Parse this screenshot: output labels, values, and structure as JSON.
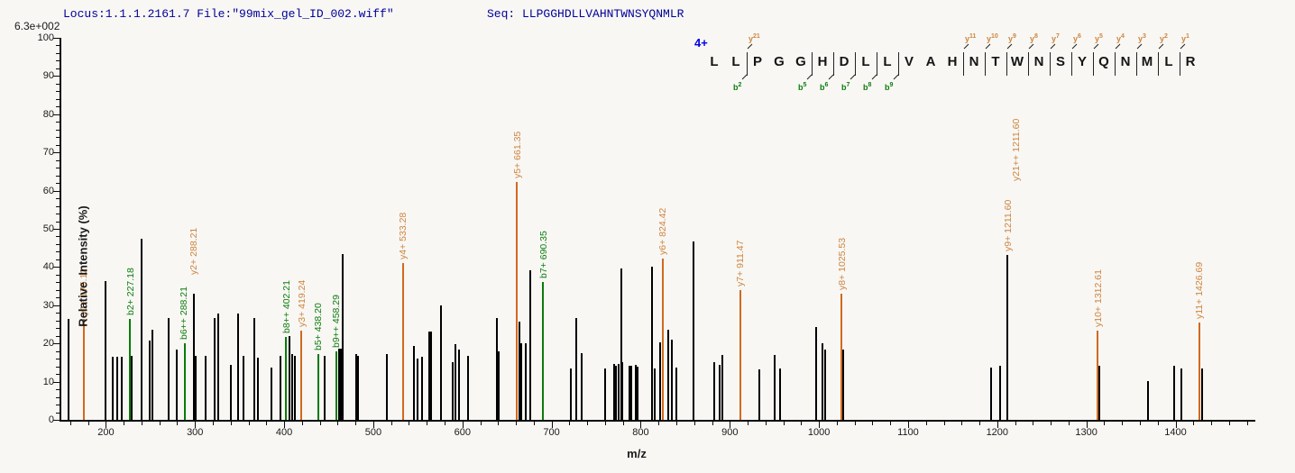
{
  "header": {
    "locus_file": "Locus:1.1.1.2161.7 File:\"99mix_gel_ID_002.wiff\"",
    "seq_line": "Seq: LLPGGHDLLVAHNTWNSYQNMLR",
    "base_intensity": "6.3e+002"
  },
  "colors": {
    "header_text": "#000099",
    "charge_text": "#0000e6",
    "y_ion_line": "#d2691e",
    "y_ion_label": "#cd853f",
    "b_ion_line": "#0a7a0a",
    "b_ion_label": "#0e7d0e",
    "peak_black": "#000000",
    "axis": "#0a0a0a"
  },
  "sequence_panel": {
    "charge_label": "4+",
    "sequence": "LLPGGHDLLVAHNTWNSYQNMLR",
    "y_markers": [
      {
        "label": "y21",
        "after": 1
      },
      {
        "label": "y11",
        "after": 11
      },
      {
        "label": "y10",
        "after": 12
      },
      {
        "label": "y9",
        "after": 13
      },
      {
        "label": "y8",
        "after": 14
      },
      {
        "label": "y7",
        "after": 15
      },
      {
        "label": "y6",
        "after": 16
      },
      {
        "label": "y5",
        "after": 17
      },
      {
        "label": "y4",
        "after": 18
      },
      {
        "label": "y3",
        "after": 19
      },
      {
        "label": "y2",
        "after": 20
      },
      {
        "label": "y1",
        "after": 21
      }
    ],
    "b_markers": [
      {
        "label": "b2",
        "after": 1
      },
      {
        "label": "b5",
        "after": 4
      },
      {
        "label": "b6",
        "after": 5
      },
      {
        "label": "b7",
        "after": 6
      },
      {
        "label": "b8",
        "after": 7
      },
      {
        "label": "b9",
        "after": 8
      }
    ]
  },
  "chart_data": {
    "type": "bar",
    "subtype": "ms2-fragmentation-spectrum",
    "title": "",
    "xlabel": "m/z",
    "ylabel": "Relative  Intensity (%)",
    "xlim": [
      150,
      1480
    ],
    "ylim": [
      0,
      100
    ],
    "x_tick_labels": [
      200,
      300,
      400,
      500,
      600,
      700,
      800,
      900,
      1000,
      1100,
      1200,
      1300,
      1400
    ],
    "x_minor_step": 20,
    "y_tick_labels": [
      0,
      10,
      20,
      30,
      40,
      50,
      60,
      70,
      80,
      90,
      100
    ],
    "y_minor_step": 2,
    "grid": false,
    "legend": false,
    "peaks_format": [
      "mz",
      "rel_intensity_pct",
      "series(k=unassigned,y=y-ion,b=b-ion)",
      "labels[text,series,dx,dy]"
    ],
    "peaks": [
      [
        158.0,
        26.5,
        "k"
      ],
      [
        175.12,
        26.5,
        "y",
        [
          [
            "y1+ 175.12",
            "y",
            0,
            0
          ]
        ]
      ],
      [
        199.1,
        36.3,
        "k"
      ],
      [
        207.8,
        16.5,
        "k"
      ],
      [
        212.9,
        16.5,
        "k"
      ],
      [
        218.0,
        16.5,
        "k"
      ],
      [
        227.18,
        26.4,
        "b",
        [
          [
            "b2+ 227.18",
            "b",
            0,
            0
          ]
        ]
      ],
      [
        229.4,
        16.7,
        "k"
      ],
      [
        239.6,
        47.4,
        "k"
      ],
      [
        249.0,
        20.7,
        "k"
      ],
      [
        252.1,
        23.6,
        "k"
      ],
      [
        270.0,
        26.7,
        "k"
      ],
      [
        279.0,
        18.5,
        "k"
      ],
      [
        288.21,
        20.0,
        "b",
        [
          [
            "b6++ 288.21",
            "b",
            -1,
            0
          ],
          [
            "y2+ 288.21",
            "y",
            10,
            -72
          ]
        ]
      ],
      [
        298.8,
        33.0,
        "k"
      ],
      [
        300.9,
        16.8,
        "k"
      ],
      [
        311.4,
        16.8,
        "k"
      ],
      [
        321.5,
        26.6,
        "k"
      ],
      [
        325.6,
        27.8,
        "k"
      ],
      [
        340.7,
        14.4,
        "k"
      ],
      [
        348.2,
        27.8,
        "k"
      ],
      [
        354.2,
        16.8,
        "k"
      ],
      [
        366.1,
        26.6,
        "k"
      ],
      [
        370.4,
        16.2,
        "k"
      ],
      [
        386.2,
        13.6,
        "k"
      ],
      [
        395.4,
        16.8,
        "k"
      ],
      [
        402.21,
        21.7,
        "b",
        [
          [
            "b8++ 402.21",
            "b",
            0,
            0
          ]
        ]
      ],
      [
        405.5,
        22.0,
        "k"
      ],
      [
        409.5,
        17.1,
        "k"
      ],
      [
        412.2,
        16.8,
        "k"
      ],
      [
        419.24,
        23.3,
        "y",
        [
          [
            "y3+ 419.24",
            "y",
            0,
            0
          ]
        ]
      ],
      [
        438.2,
        17.1,
        "b",
        [
          [
            "b5+ 438.20",
            "b",
            0,
            0
          ]
        ]
      ],
      [
        445.3,
        16.8,
        "k"
      ],
      [
        458.29,
        17.9,
        "b",
        [
          [
            "b9++ 458.29",
            "b",
            0,
            0
          ]
        ]
      ],
      [
        461.5,
        18.6,
        "k"
      ],
      [
        463.5,
        18.6,
        "k"
      ],
      [
        465.8,
        43.3,
        "k"
      ],
      [
        480.8,
        17.1,
        "k"
      ],
      [
        483.2,
        16.8,
        "k"
      ],
      [
        515.4,
        17.3,
        "k"
      ],
      [
        533.28,
        41.1,
        "y",
        [
          [
            "y4+ 533.28",
            "y",
            0,
            0
          ]
        ]
      ],
      [
        545.5,
        19.3,
        "k"
      ],
      [
        549.9,
        16.0,
        "k"
      ],
      [
        554.5,
        16.6,
        "k"
      ],
      [
        563.0,
        23.2,
        "k"
      ],
      [
        565.0,
        23.2,
        "k"
      ],
      [
        575.7,
        29.9,
        "k"
      ],
      [
        588.6,
        15.0,
        "k"
      ],
      [
        592.0,
        19.9,
        "k"
      ],
      [
        596.0,
        18.3,
        "k"
      ],
      [
        606.4,
        16.7,
        "k"
      ],
      [
        638.5,
        26.7,
        "k"
      ],
      [
        641.0,
        18.0,
        "k"
      ],
      [
        661.35,
        62.3,
        "y",
        [
          [
            "y5+ 661.35",
            "y",
            0,
            0
          ]
        ]
      ],
      [
        663.8,
        25.8,
        "k"
      ],
      [
        666.0,
        20.0,
        "k"
      ],
      [
        670.8,
        20.0,
        "k"
      ],
      [
        675.6,
        39.2,
        "k"
      ],
      [
        690.35,
        36.2,
        "b",
        [
          [
            "b7+ 690.35",
            "b",
            0,
            0
          ]
        ]
      ],
      [
        721.5,
        13.5,
        "k"
      ],
      [
        727.5,
        26.7,
        "k"
      ],
      [
        734.0,
        17.5,
        "k"
      ],
      [
        760.2,
        13.4,
        "k"
      ],
      [
        770.0,
        14.6,
        "k"
      ],
      [
        772.4,
        14.2,
        "k"
      ],
      [
        775.0,
        14.6,
        "k"
      ],
      [
        777.8,
        39.6,
        "k"
      ],
      [
        779.5,
        15.0,
        "k"
      ],
      [
        787.3,
        14.2,
        "k"
      ],
      [
        789.5,
        14.2,
        "k"
      ],
      [
        794.0,
        14.4,
        "k"
      ],
      [
        796.0,
        14.0,
        "k"
      ],
      [
        812.2,
        40.1,
        "k"
      ],
      [
        815.5,
        13.4,
        "k"
      ],
      [
        821.3,
        20.3,
        "k"
      ],
      [
        824.42,
        42.3,
        "y",
        [
          [
            "y6+ 824.42",
            "y",
            0,
            0
          ]
        ]
      ],
      [
        830.5,
        23.7,
        "k"
      ],
      [
        835.1,
        21.1,
        "k"
      ],
      [
        839.9,
        13.6,
        "k"
      ],
      [
        859.1,
        46.6,
        "k"
      ],
      [
        883.0,
        15.2,
        "k"
      ],
      [
        888.1,
        14.4,
        "k"
      ],
      [
        891.4,
        17.0,
        "k"
      ],
      [
        911.47,
        34.0,
        "y",
        [
          [
            "y7+ 911.47",
            "y",
            0,
            0
          ]
        ]
      ],
      [
        933.2,
        13.2,
        "k"
      ],
      [
        950.1,
        17.0,
        "k"
      ],
      [
        956.4,
        13.4,
        "k"
      ],
      [
        997.3,
        24.4,
        "k"
      ],
      [
        1004.4,
        20.0,
        "k"
      ],
      [
        1006.7,
        18.3,
        "k"
      ],
      [
        1025.53,
        33.0,
        "y",
        [
          [
            "y8+ 1025.53",
            "y",
            0,
            0
          ]
        ]
      ],
      [
        1027.5,
        18.3,
        "k"
      ],
      [
        1193.3,
        13.6,
        "k"
      ],
      [
        1203.4,
        14.2,
        "k"
      ],
      [
        1211.6,
        43.2,
        "k",
        [
          [
            "y9+ 1211.60",
            "y",
            0,
            0
          ],
          [
            "y21++ 1211.60",
            "y",
            9,
            -78
          ]
        ]
      ],
      [
        1312.61,
        23.4,
        "y",
        [
          [
            "y10+ 1312.61",
            "y",
            0,
            0
          ]
        ]
      ],
      [
        1314.8,
        14.2,
        "k"
      ],
      [
        1369.3,
        10.1,
        "k"
      ],
      [
        1398.0,
        14.2,
        "k"
      ],
      [
        1406.4,
        13.4,
        "k"
      ],
      [
        1426.69,
        25.4,
        "y",
        [
          [
            "y11+ 1426.69",
            "y",
            0,
            0
          ]
        ]
      ],
      [
        1429.4,
        13.4,
        "k"
      ]
    ]
  }
}
